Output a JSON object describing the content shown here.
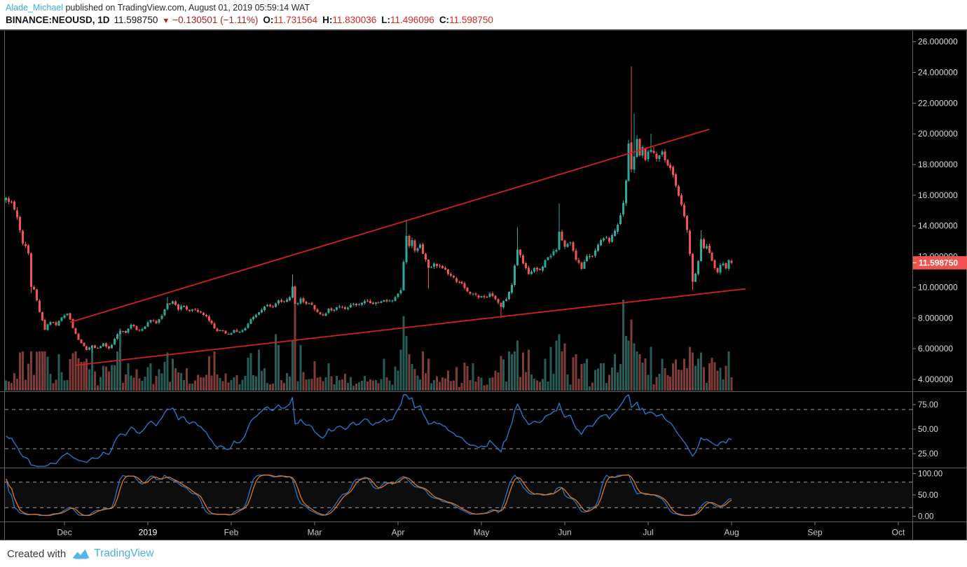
{
  "header": {
    "byline_user": "Alade_Michael",
    "byline_rest": " published on TradingView.com, August 01, 2019 05:59:14 WAT",
    "symbol": "BINANCE:NEOUSD, 1D",
    "last_price": "11.598750",
    "direction_icon": "▼",
    "change": "−0.130501 (−1.11%)",
    "ohlc": [
      {
        "label": "O:",
        "value": "11.731564"
      },
      {
        "label": "H:",
        "value": "11.830036"
      },
      {
        "label": "L:",
        "value": "11.496096"
      },
      {
        "label": "C:",
        "value": "11.598750"
      }
    ]
  },
  "footer": {
    "created_with": "Created with",
    "brand": "TradingView"
  },
  "colors": {
    "background": "#000000",
    "up": "#2ba99b",
    "down": "#ef5451",
    "vol_up": "#275d56",
    "vol_down": "#7e3b37",
    "trendline": "#d41f1f",
    "rsi_line": "#2874c6",
    "stoch_k": "#2874c6",
    "stoch_d": "#e2751a",
    "tag_bg": "#ef5350",
    "tag_text": "#ffffff",
    "axis_text": "#d9d9d9",
    "month_text": "#c9c9c9",
    "year_text": "#ffffff",
    "dashed_level": "#9f9f9f",
    "border": "#5f5f5f",
    "tick": "#888888"
  },
  "chart_data": {
    "type": "candlestick",
    "symbol": "BINANCE:NEOUSD",
    "interval": "1D",
    "days": 262,
    "ylim": [
      3.2,
      26.7
    ],
    "price_axis_labels": [
      {
        "v": 26,
        "label": "26.000000"
      },
      {
        "v": 24,
        "label": "24.000000"
      },
      {
        "v": 22,
        "label": "22.000000"
      },
      {
        "v": 20,
        "label": "20.000000"
      },
      {
        "v": 18,
        "label": "18.000000"
      },
      {
        "v": 16,
        "label": "16.000000"
      },
      {
        "v": 14,
        "label": "14.000000"
      },
      {
        "v": 12,
        "label": "12.000000"
      },
      {
        "v": 10,
        "label": "10.000000"
      },
      {
        "v": 8,
        "label": "8.000000"
      },
      {
        "v": 6,
        "label": "6.000000"
      },
      {
        "v": 4,
        "label": "4.000000"
      }
    ],
    "price_tag": {
      "text": "11.598750",
      "price": 11.59875
    },
    "months": [
      {
        "label": "Dec",
        "d": 21
      },
      {
        "label": "2019",
        "d": 51,
        "year": true
      },
      {
        "label": "Feb",
        "d": 81
      },
      {
        "label": "Mar",
        "d": 111
      },
      {
        "label": "Apr",
        "d": 141
      },
      {
        "label": "May",
        "d": 171
      },
      {
        "label": "Jun",
        "d": 201
      },
      {
        "label": "Jul",
        "d": 231
      },
      {
        "label": "Aug",
        "d": 261
      },
      {
        "label": "Sep",
        "d": 291
      },
      {
        "label": "Oct",
        "d": 321
      }
    ],
    "price_waypoints": [
      [
        0,
        15.9
      ],
      [
        3,
        15.2
      ],
      [
        4,
        14.6
      ],
      [
        6,
        12.9
      ],
      [
        8,
        12.3
      ],
      [
        9,
        10.1
      ],
      [
        10,
        9.8
      ],
      [
        12,
        8.4
      ],
      [
        14,
        7.3
      ],
      [
        16,
        7.8
      ],
      [
        18,
        7.6
      ],
      [
        20,
        8.0
      ],
      [
        22,
        8.3
      ],
      [
        24,
        7.4
      ],
      [
        26,
        6.6
      ],
      [
        29,
        5.9
      ],
      [
        31,
        6.2
      ],
      [
        33,
        6.0
      ],
      [
        35,
        6.3
      ],
      [
        37,
        6.0
      ],
      [
        39,
        6.6
      ],
      [
        41,
        7.2
      ],
      [
        43,
        7.0
      ],
      [
        45,
        7.6
      ],
      [
        48,
        7.1
      ],
      [
        50,
        7.4
      ],
      [
        52,
        7.9
      ],
      [
        54,
        7.7
      ],
      [
        56,
        8.2
      ],
      [
        58,
        8.9
      ],
      [
        60,
        9.0
      ],
      [
        62,
        8.6
      ],
      [
        64,
        8.8
      ],
      [
        66,
        8.4
      ],
      [
        68,
        8.6
      ],
      [
        70,
        8.3
      ],
      [
        72,
        8.1
      ],
      [
        74,
        7.6
      ],
      [
        76,
        7.2
      ],
      [
        78,
        7.1
      ],
      [
        80,
        6.9
      ],
      [
        82,
        7.2
      ],
      [
        84,
        7.1
      ],
      [
        86,
        7.4
      ],
      [
        88,
        7.9
      ],
      [
        90,
        8.2
      ],
      [
        92,
        8.6
      ],
      [
        94,
        8.8
      ],
      [
        96,
        8.7
      ],
      [
        98,
        9.2
      ],
      [
        100,
        9.0
      ],
      [
        102,
        9.4
      ],
      [
        103,
        10.1
      ],
      [
        104,
        8.9
      ],
      [
        106,
        9.2
      ],
      [
        108,
        9.0
      ],
      [
        110,
        8.8
      ],
      [
        112,
        8.4
      ],
      [
        114,
        8.1
      ],
      [
        116,
        8.6
      ],
      [
        118,
        8.5
      ],
      [
        120,
        8.8
      ],
      [
        122,
        8.6
      ],
      [
        124,
        8.9
      ],
      [
        126,
        8.8
      ],
      [
        128,
        9.0
      ],
      [
        130,
        9.1
      ],
      [
        132,
        8.9
      ],
      [
        134,
        9.0
      ],
      [
        136,
        9.2
      ],
      [
        138,
        9.1
      ],
      [
        140,
        9.3
      ],
      [
        142,
        9.9
      ],
      [
        143,
        11.6
      ],
      [
        144,
        13.3
      ],
      [
        145,
        12.8
      ],
      [
        146,
        13.2
      ],
      [
        147,
        12.5
      ],
      [
        149,
        12.8
      ],
      [
        151,
        11.7
      ],
      [
        152,
        11.2
      ],
      [
        154,
        11.6
      ],
      [
        156,
        11.3
      ],
      [
        158,
        11.1
      ],
      [
        160,
        10.8
      ],
      [
        162,
        10.4
      ],
      [
        164,
        10.2
      ],
      [
        166,
        9.8
      ],
      [
        168,
        9.5
      ],
      [
        170,
        9.4
      ],
      [
        172,
        9.3
      ],
      [
        174,
        9.6
      ],
      [
        176,
        9.2
      ],
      [
        178,
        8.8
      ],
      [
        180,
        9.3
      ],
      [
        182,
        10.2
      ],
      [
        184,
        12.5
      ],
      [
        186,
        11.6
      ],
      [
        188,
        10.9
      ],
      [
        190,
        11.3
      ],
      [
        192,
        11.1
      ],
      [
        194,
        11.7
      ],
      [
        196,
        12.1
      ],
      [
        198,
        12.5
      ],
      [
        199,
        13.6
      ],
      [
        201,
        12.7
      ],
      [
        203,
        12.9
      ],
      [
        205,
        11.9
      ],
      [
        207,
        11.2
      ],
      [
        209,
        12.1
      ],
      [
        211,
        12.0
      ],
      [
        213,
        12.7
      ],
      [
        215,
        13.3
      ],
      [
        217,
        13.0
      ],
      [
        219,
        13.8
      ],
      [
        221,
        14.6
      ],
      [
        222,
        15.4
      ],
      [
        223,
        16.8
      ],
      [
        224,
        19.4
      ],
      [
        225,
        17.6
      ],
      [
        226,
        18.5
      ],
      [
        227,
        19.6
      ],
      [
        228,
        18.6
      ],
      [
        229,
        19.1
      ],
      [
        230,
        18.4
      ],
      [
        232,
        19.0
      ],
      [
        234,
        18.5
      ],
      [
        236,
        18.8
      ],
      [
        238,
        17.9
      ],
      [
        240,
        17.4
      ],
      [
        241,
        16.5
      ],
      [
        243,
        15.3
      ],
      [
        244,
        14.6
      ],
      [
        245,
        13.8
      ],
      [
        246,
        12.2
      ],
      [
        247,
        10.4
      ],
      [
        248,
        10.9
      ],
      [
        249,
        11.8
      ],
      [
        250,
        13.1
      ],
      [
        251,
        12.5
      ],
      [
        252,
        12.8
      ],
      [
        253,
        12.2
      ],
      [
        254,
        11.7
      ],
      [
        255,
        11.3
      ],
      [
        256,
        11.0
      ],
      [
        257,
        11.4
      ],
      [
        258,
        11.5
      ],
      [
        259,
        11.3
      ],
      [
        260,
        11.73
      ],
      [
        261,
        11.6
      ]
    ],
    "wick_overrides": {
      "9": {
        "l": 9.6
      },
      "31": {
        "l": 5.72
      },
      "58": {
        "h": 9.35
      },
      "103": {
        "h": 10.85
      },
      "144": {
        "h": 14.42
      },
      "152": {
        "l": 9.9
      },
      "178": {
        "l": 7.98
      },
      "184": {
        "h": 13.92
      },
      "199": {
        "h": 15.45
      },
      "225": {
        "h": 24.4
      },
      "226": {
        "h": 21.3
      },
      "232": {
        "h": 20.0
      },
      "247": {
        "l": 9.82
      },
      "250": {
        "h": 13.72
      }
    },
    "last_candle": {
      "o": 11.731564,
      "h": 11.830036,
      "l": 11.496096,
      "c": 11.59875
    },
    "volume_spikes": {
      "29": 0.35,
      "31": 0.5,
      "41": 0.68,
      "44": 0.3,
      "52": 0.3,
      "58": 0.42,
      "60": 0.35,
      "91": 0.45,
      "97": 0.62,
      "98": 0.5,
      "103": 0.55,
      "104": 0.97,
      "106": 0.5,
      "116": 0.3,
      "136": 0.35,
      "142": 0.45,
      "143": 0.82,
      "144": 0.6,
      "145": 0.4,
      "152": 0.35,
      "168": 0.3,
      "178": 0.38,
      "182": 0.4,
      "184": 0.55,
      "186": 0.42,
      "188": 0.45,
      "194": 0.35,
      "196": 0.48,
      "198": 0.55,
      "199": 0.62,
      "201": 0.52,
      "205": 0.4,
      "209": 0.35,
      "215": 0.3,
      "219": 0.4,
      "222": 1.0,
      "223": 0.6,
      "224": 0.55,
      "225": 0.78,
      "226": 0.52,
      "228": 0.4,
      "232": 0.48,
      "236": 0.35,
      "240": 0.3,
      "244": 0.35,
      "246": 0.48,
      "247": 0.42,
      "249": 0.35,
      "250": 0.42,
      "253": 0.3,
      "257": 0.25
    },
    "trendlines": [
      {
        "d1": 23,
        "p1": 7.72,
        "d2": 253,
        "p2": 20.3
      },
      {
        "d1": 25,
        "p1": 4.92,
        "d2": 266,
        "p2": 9.9
      }
    ],
    "indicators": {
      "rsi": {
        "length": 14,
        "levels": [
          70,
          30
        ],
        "axis": [
          {
            "v": 75,
            "label": "75.00"
          },
          {
            "v": 50,
            "label": "50.00"
          },
          {
            "v": 25,
            "label": "25.00"
          }
        ]
      },
      "stoch": {
        "k": 14,
        "smooth": 3,
        "levels": [
          80,
          20
        ],
        "axis": [
          {
            "v": 100,
            "label": "100.00"
          },
          {
            "v": 50,
            "label": "50.00"
          },
          {
            "v": 0,
            "label": "0.00"
          }
        ]
      }
    }
  }
}
